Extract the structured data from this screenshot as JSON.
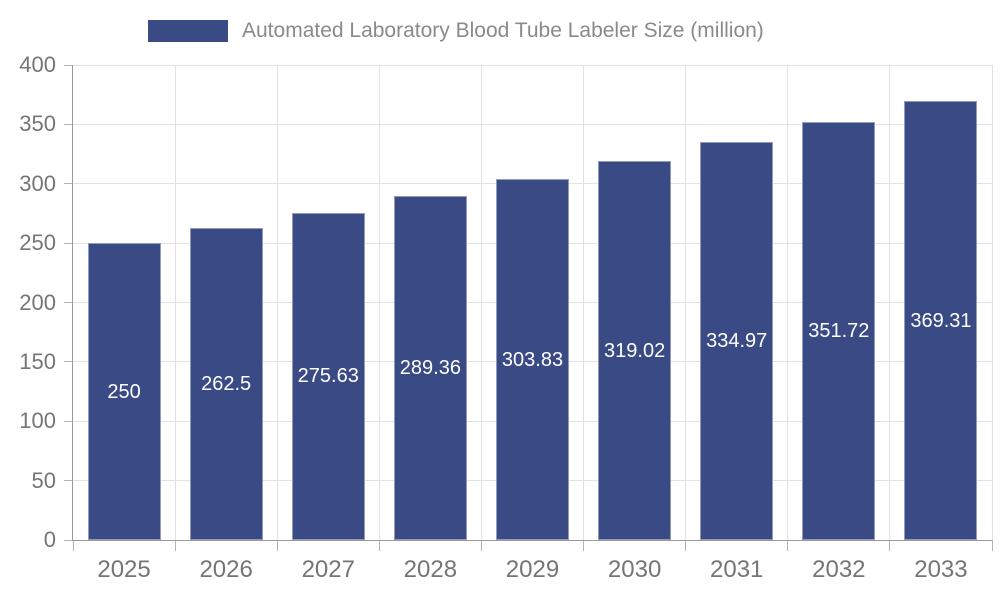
{
  "chart_data": {
    "type": "bar",
    "legend": "Automated Laboratory Blood Tube Labeler Size (million)",
    "categories": [
      "2025",
      "2026",
      "2027",
      "2028",
      "2029",
      "2030",
      "2031",
      "2032",
      "2033"
    ],
    "values": [
      250,
      262.5,
      275.63,
      289.36,
      303.83,
      319.02,
      334.97,
      351.72,
      369.31
    ],
    "value_labels": [
      "250",
      "262.5",
      "275.63",
      "289.36",
      "303.83",
      "319.02",
      "334.97",
      "351.72",
      "369.31"
    ],
    "yticks": [
      "0",
      "50",
      "100",
      "150",
      "200",
      "250",
      "300",
      "350",
      "400"
    ],
    "ylim": [
      0,
      400
    ],
    "ytick_step": 50,
    "xlabel": "",
    "ylabel": "",
    "grid": true,
    "legend_position": "top",
    "colors": {
      "bar": "#3a4a85",
      "gridline": "#e2e2e2",
      "axis": "#999999",
      "tick": "#b3b3b3",
      "axis_text": "#757575",
      "legend_text": "#8a8a8a",
      "value_text": "#ffffff",
      "background": "#ffffff"
    }
  }
}
